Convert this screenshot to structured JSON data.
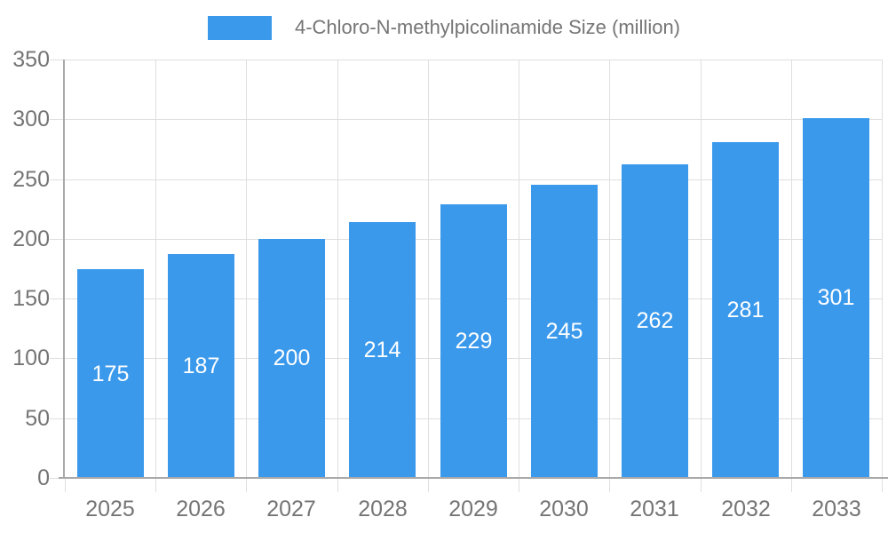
{
  "chart_data": {
    "type": "bar",
    "title": "4-Chloro-N-methylpicolinamide Size (million)",
    "categories": [
      "2025",
      "2026",
      "2027",
      "2028",
      "2029",
      "2030",
      "2031",
      "2032",
      "2033"
    ],
    "values": [
      175,
      187,
      200,
      214,
      229,
      245,
      262,
      281,
      301
    ],
    "xlabel": "",
    "ylabel": "",
    "ylim": [
      0,
      350
    ],
    "yticks": [
      0,
      50,
      100,
      150,
      200,
      250,
      300,
      350
    ],
    "grid": true,
    "legend_position": "top",
    "colors": {
      "bar": "#3B99EC",
      "axis_text": "#757575",
      "axis_line": "#A9A9A9",
      "gridline": "#DFDFDF",
      "bar_label": "#FFFFFF"
    }
  }
}
